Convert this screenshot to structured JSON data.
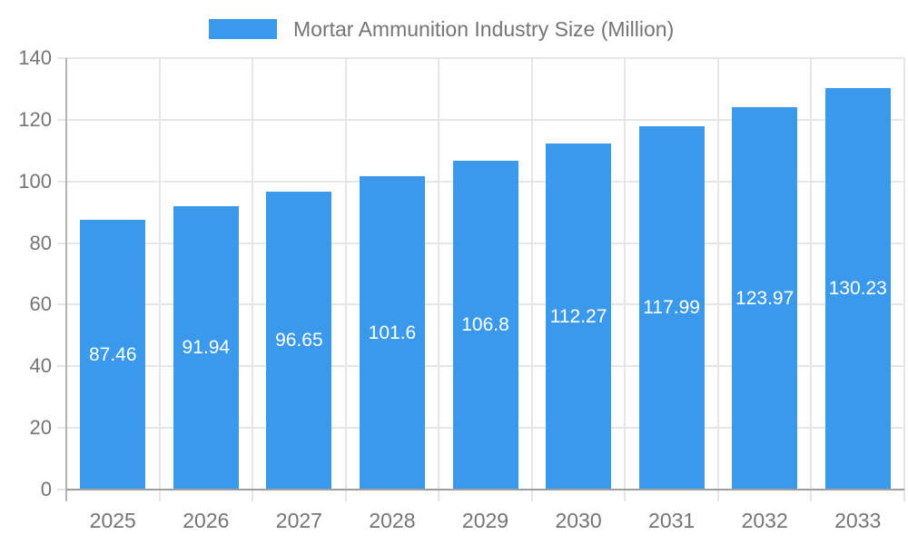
{
  "legend": {
    "label": "Mortar Ammunition Industry Size (Million)"
  },
  "chart_data": {
    "type": "bar",
    "title": "Mortar Ammunition Industry Size (Million)",
    "categories": [
      "2025",
      "2026",
      "2027",
      "2028",
      "2029",
      "2030",
      "2031",
      "2032",
      "2033"
    ],
    "values": [
      87.46,
      91.94,
      96.65,
      101.6,
      106.8,
      112.27,
      117.99,
      123.97,
      130.23
    ],
    "value_labels": [
      "87.46",
      "91.94",
      "96.65",
      "101.6",
      "106.8",
      "112.27",
      "117.99",
      "123.97",
      "130.23"
    ],
    "xlabel": "",
    "ylabel": "",
    "ylim": [
      0,
      140
    ],
    "yticks": [
      0,
      20,
      40,
      60,
      80,
      100,
      120,
      140
    ],
    "grid": true,
    "legend_position": "top",
    "colors": {
      "bar": "#3B99EC",
      "axis_text": "#757575",
      "value_label": "#ffffff",
      "gridline": "#e6e6e6",
      "axis_line": "#b3b3b3",
      "baseline": "#9e9e9e",
      "background": "#ffffff"
    }
  }
}
